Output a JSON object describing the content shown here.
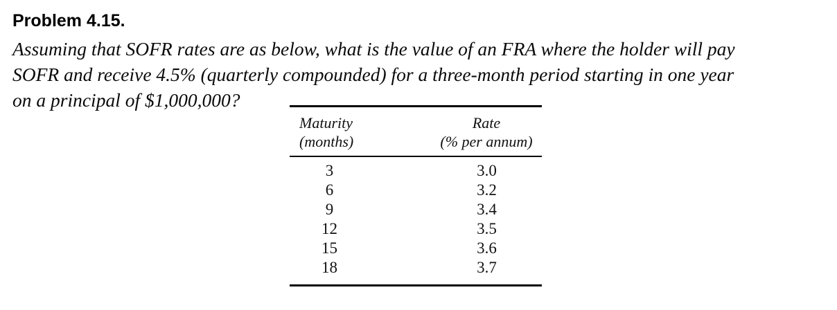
{
  "problem": {
    "title": "Problem 4.15.",
    "line1": "Assuming that SOFR rates are as below, what is the value of an FRA where the holder will pay",
    "line2": "SOFR and receive 4.5% (quarterly compounded) for a three-month period starting in one year",
    "line3": "on a principal of $1,000,000?"
  },
  "table": {
    "header": {
      "maturity_line1": "Maturity",
      "maturity_line2": "(months)",
      "rate_line1": "Rate",
      "rate_line2": "(% per annum)"
    },
    "rows": [
      {
        "maturity": "3",
        "rate": "3.0"
      },
      {
        "maturity": "6",
        "rate": "3.2"
      },
      {
        "maturity": "9",
        "rate": "3.4"
      },
      {
        "maturity": "12",
        "rate": "3.5"
      },
      {
        "maturity": "15",
        "rate": "3.6"
      },
      {
        "maturity": "18",
        "rate": "3.7"
      }
    ]
  }
}
